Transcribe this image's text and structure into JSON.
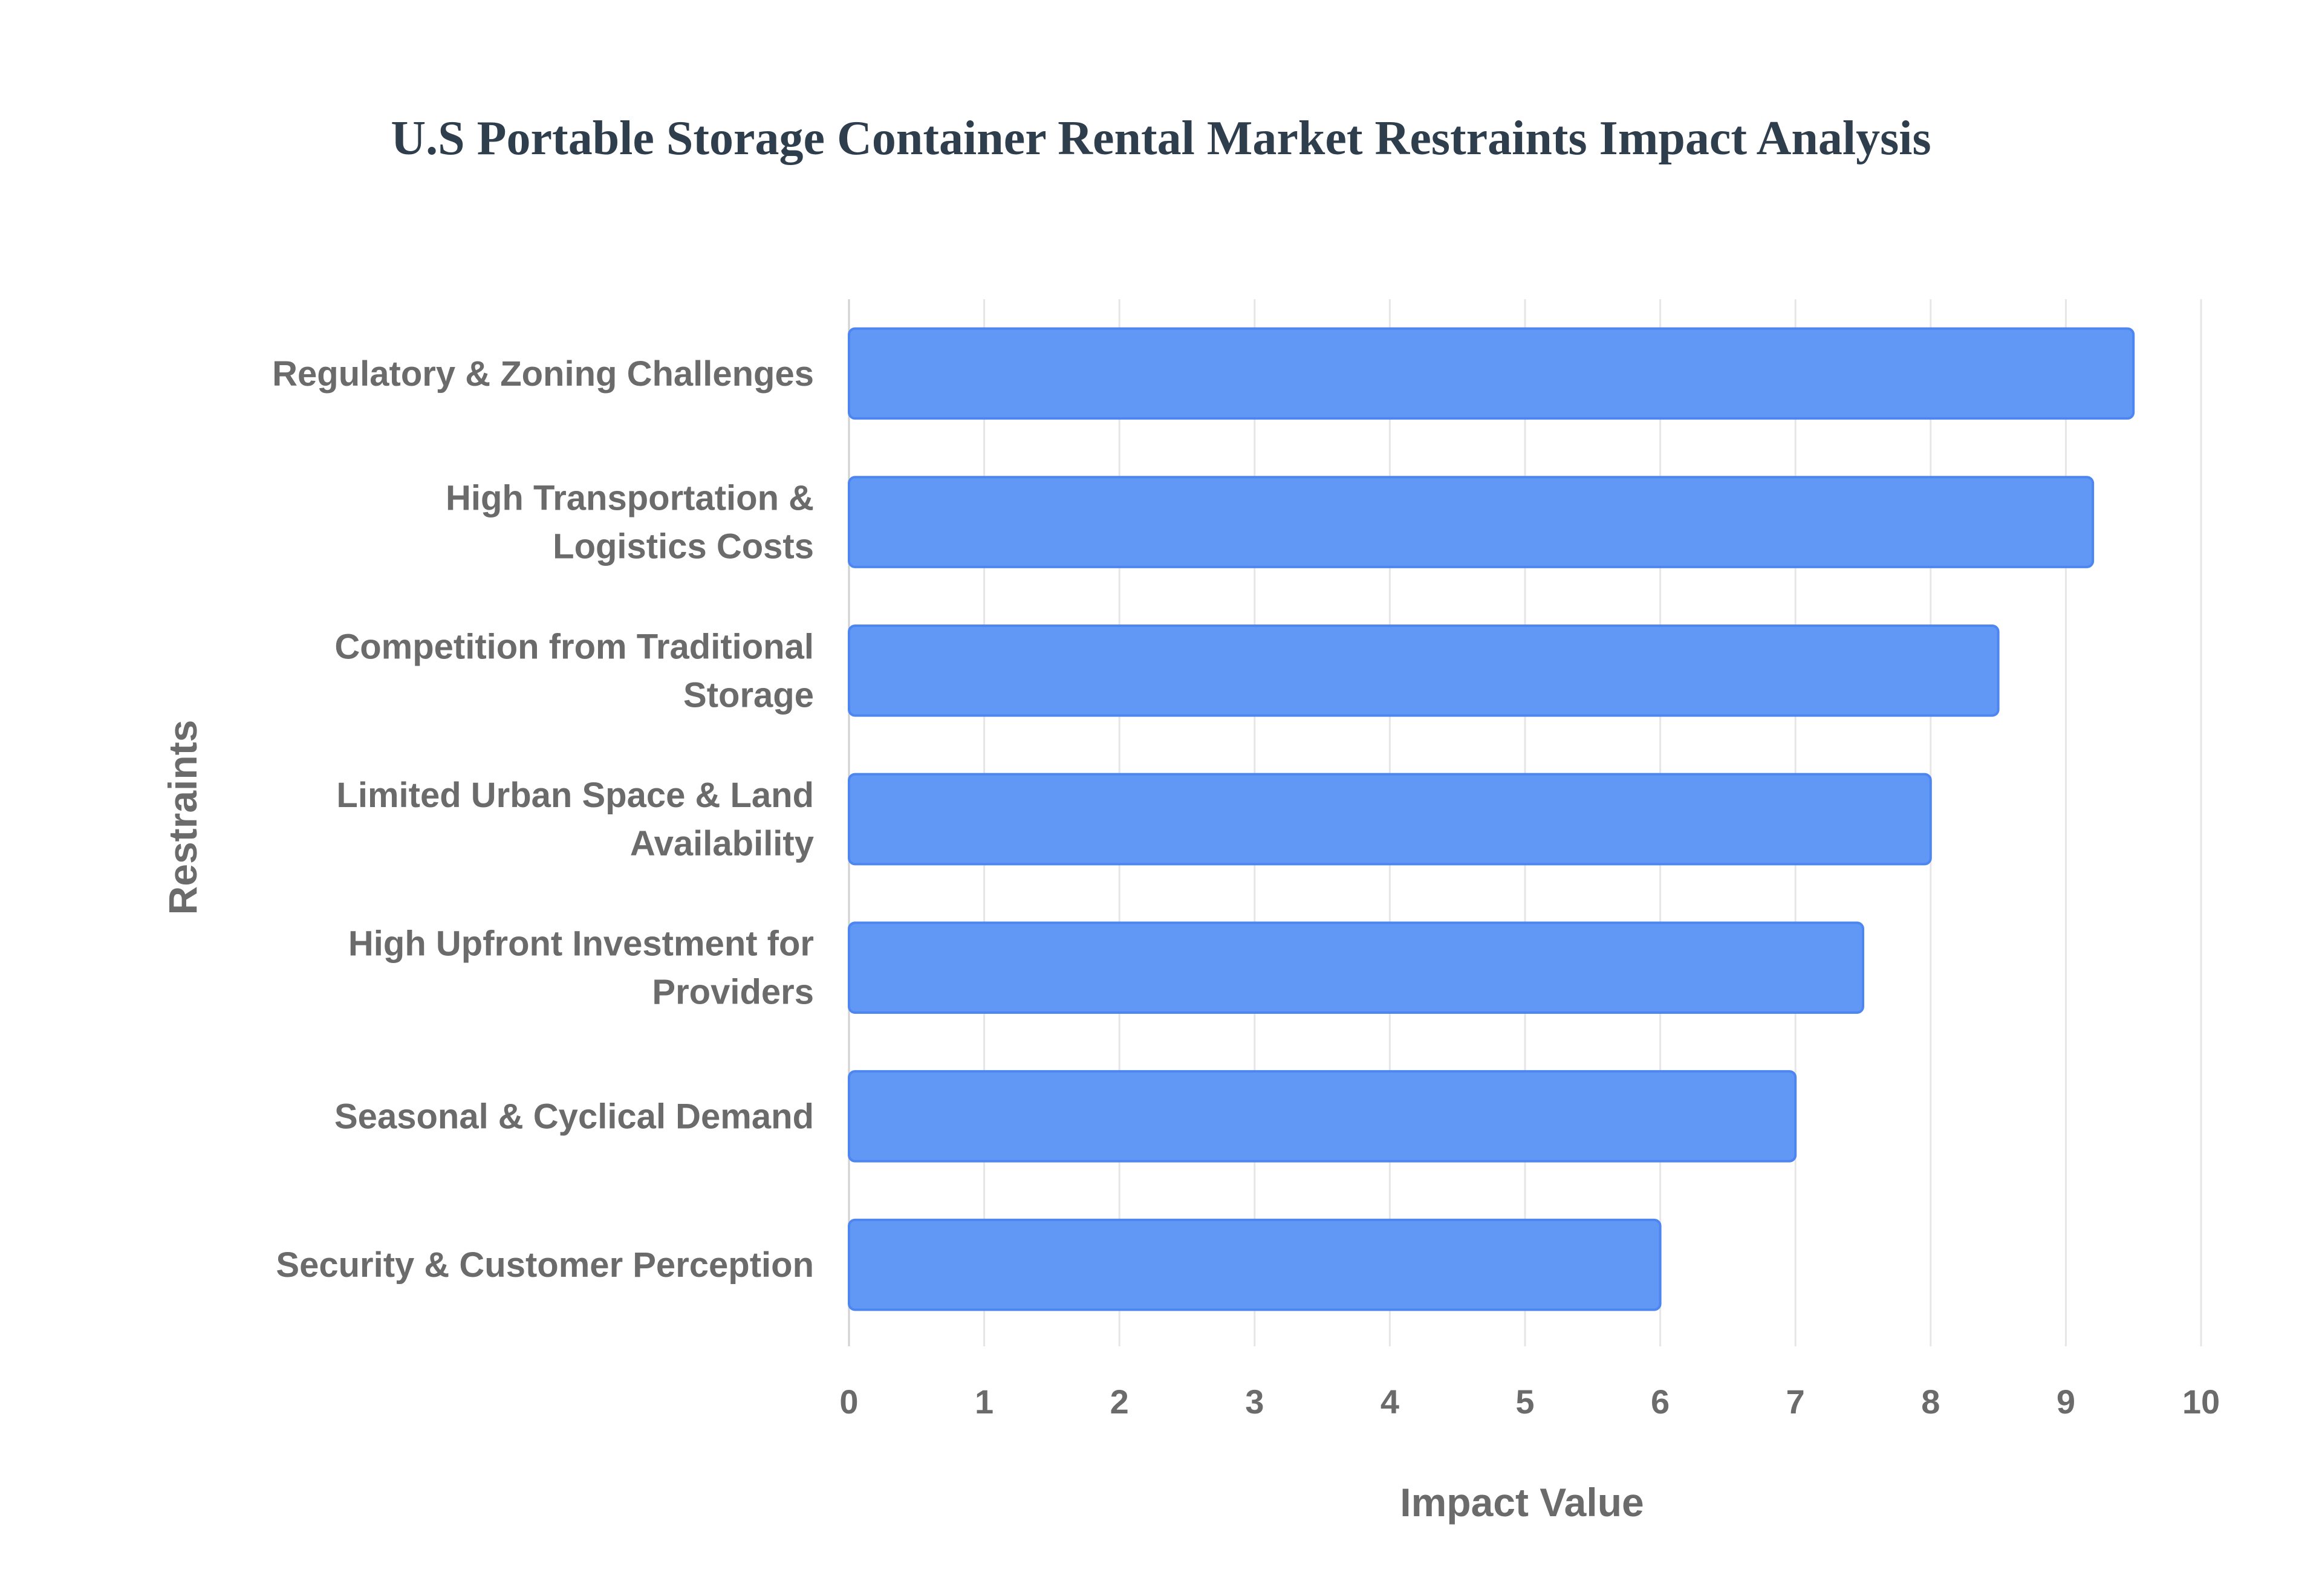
{
  "chart_data": {
    "type": "bar",
    "orientation": "horizontal",
    "title": "U.S Portable Storage Container Rental Market Restraints Impact Analysis",
    "xlabel": "Impact Value",
    "ylabel": "Restraints",
    "xlim": [
      0,
      10
    ],
    "xticks": [
      "0",
      "1",
      "2",
      "3",
      "4",
      "5",
      "6",
      "7",
      "8",
      "9",
      "10"
    ],
    "grid": true,
    "legend": "none",
    "bar_color": "#6198f5",
    "bar_border_color": "#4d86f0",
    "categories": [
      [
        "Regulatory & Zoning Challenges"
      ],
      [
        "High Transportation &",
        "Logistics Costs"
      ],
      [
        "Competition from Traditional",
        "Storage"
      ],
      [
        "Limited Urban Space & Land",
        "Availability"
      ],
      [
        "High Upfront Investment for",
        "Providers"
      ],
      [
        "Seasonal & Cyclical Demand"
      ],
      [
        "Security & Customer Perception"
      ]
    ],
    "values": [
      9.5,
      9.2,
      8.5,
      8.0,
      7.5,
      7.0,
      6.0
    ]
  }
}
